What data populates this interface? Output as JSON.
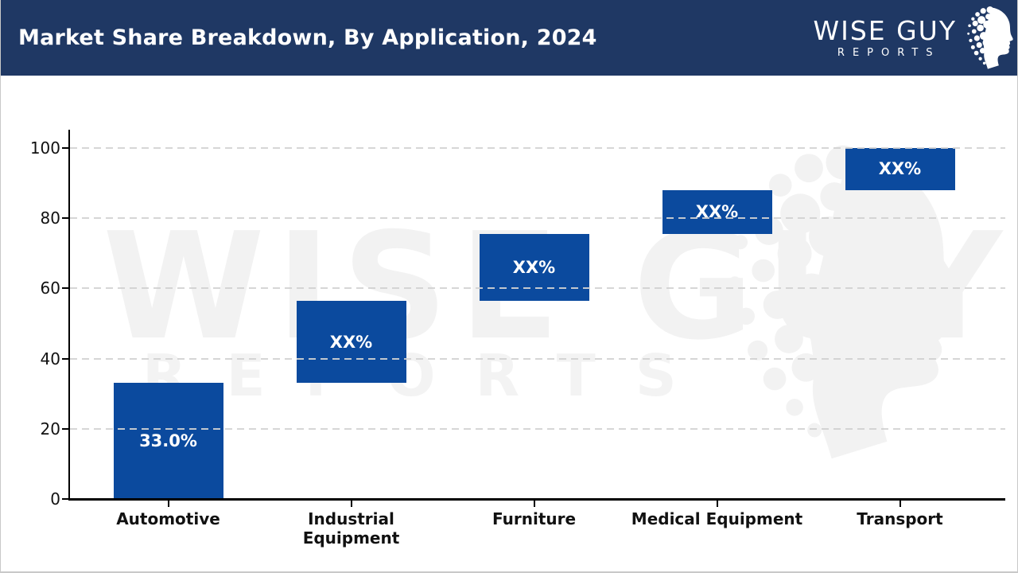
{
  "header": {
    "title": "Market Share Breakdown, By Application, 2024",
    "logo": {
      "name_line": "WISE GUY",
      "sub_line": "REPORTS"
    }
  },
  "watermark": {
    "line1": "WISE GUY",
    "line2": "REPORTS"
  },
  "chart_data": {
    "type": "bar",
    "subtype": "waterfall",
    "title": "Market Share Breakdown, By Application, 2024",
    "xlabel": "",
    "ylabel": "",
    "ylim": [
      0,
      105
    ],
    "yticks": [
      0,
      20,
      40,
      60,
      80,
      100
    ],
    "grid": "horizontal-dashed, drawn over bars",
    "legend": "none",
    "categories": [
      "Automotive",
      "Industrial Equipment",
      "Furniture",
      "Medical Equipment",
      "Transport"
    ],
    "segments": [
      {
        "category": "Automotive",
        "label_lines": [
          "Automotive"
        ],
        "start": 0,
        "end": 33,
        "value": 33.0,
        "value_label": "33.0%"
      },
      {
        "category": "Industrial Equipment",
        "label_lines": [
          "Industrial",
          "Equipment"
        ],
        "start": 33,
        "end": 56.5,
        "value": 23.5,
        "value_label": "XX%"
      },
      {
        "category": "Furniture",
        "label_lines": [
          "Furniture"
        ],
        "start": 56.5,
        "end": 75.5,
        "value": 19.0,
        "value_label": "XX%"
      },
      {
        "category": "Medical Equipment",
        "label_lines": [
          "Medical Equipment"
        ],
        "start": 75.5,
        "end": 88,
        "value": 12.5,
        "value_label": "XX%"
      },
      {
        "category": "Transport",
        "label_lines": [
          "Transport"
        ],
        "start": 88,
        "end": 100,
        "value": 12.0,
        "value_label": "XX%"
      }
    ],
    "colors": {
      "bar": "#0b4a9e",
      "value_label": "#ffffff",
      "grid": "#d9d9d9",
      "axis": "#000000",
      "tick_label": "#111111"
    }
  },
  "theme": {
    "header_bg": "#1f3864",
    "header_text": "#ffffff",
    "page_bg": "#ffffff",
    "watermark_color": "#f2f2f2",
    "border": "#c9c9c9"
  }
}
